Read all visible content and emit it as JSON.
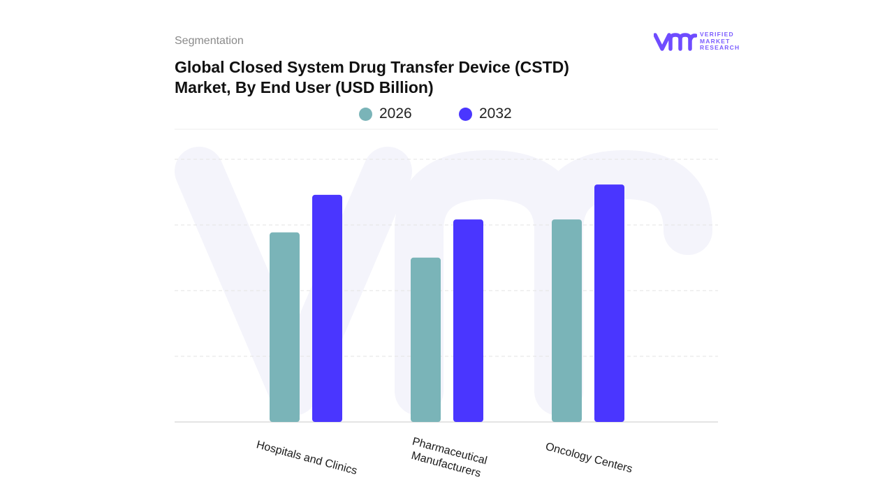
{
  "header": {
    "segment_label": "Segmentation",
    "title": "Global Closed System Drug Transfer Device (CSTD) Market, By End User (USD Billion)"
  },
  "logo": {
    "line1": "VERIFIED",
    "line2": "MARKET",
    "line3": "RESEARCH",
    "mark_color": "#6f4cff"
  },
  "colors": {
    "series_2026": "#7ab4b8",
    "series_2032": "#4a36ff",
    "grid": "#e3e3e3",
    "watermark": "#f4f4fb"
  },
  "chart_data": {
    "type": "bar",
    "title": "Global Closed System Drug Transfer Device (CSTD) Market, By End User (USD Billion)",
    "categories": [
      "Hospitals and Clinics",
      "Pharmaceutical Manufacturers",
      "Oncology Centers"
    ],
    "category_lines": [
      [
        "Hospitals and Clinics"
      ],
      [
        "Pharmaceutical",
        "Manufacturers"
      ],
      [
        "Oncology Centers"
      ]
    ],
    "series": [
      {
        "name": "2026",
        "values": [
          2.93,
          2.54,
          3.13
        ]
      },
      {
        "name": "2032",
        "values": [
          3.51,
          3.13,
          3.67
        ]
      }
    ],
    "ylim": [
      0,
      4.06
    ],
    "xlabel": "",
    "ylabel": "",
    "grid": true,
    "legend": "top-center",
    "x_tick_rotation_deg": 15
  }
}
